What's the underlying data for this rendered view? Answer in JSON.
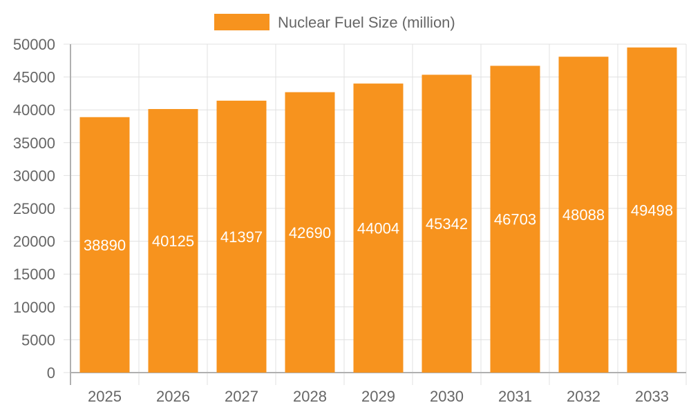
{
  "chart_data": {
    "type": "bar",
    "categories": [
      "2025",
      "2026",
      "2027",
      "2028",
      "2029",
      "2030",
      "2031",
      "2032",
      "2033"
    ],
    "series": [
      {
        "name": "Nuclear Fuel Size (million)",
        "values": [
          38890,
          40125,
          41397,
          42690,
          44004,
          45342,
          46703,
          48088,
          49498
        ],
        "color": "#f7931e"
      }
    ],
    "title": "",
    "xlabel": "",
    "ylabel": "",
    "ylim": [
      0,
      50000
    ],
    "yticks": [
      "0",
      "5000",
      "10000",
      "15000",
      "20000",
      "25000",
      "30000",
      "35000",
      "40000",
      "45000",
      "50000"
    ],
    "grid": true,
    "legend": "top-center",
    "data_labels": "inside-middle"
  }
}
